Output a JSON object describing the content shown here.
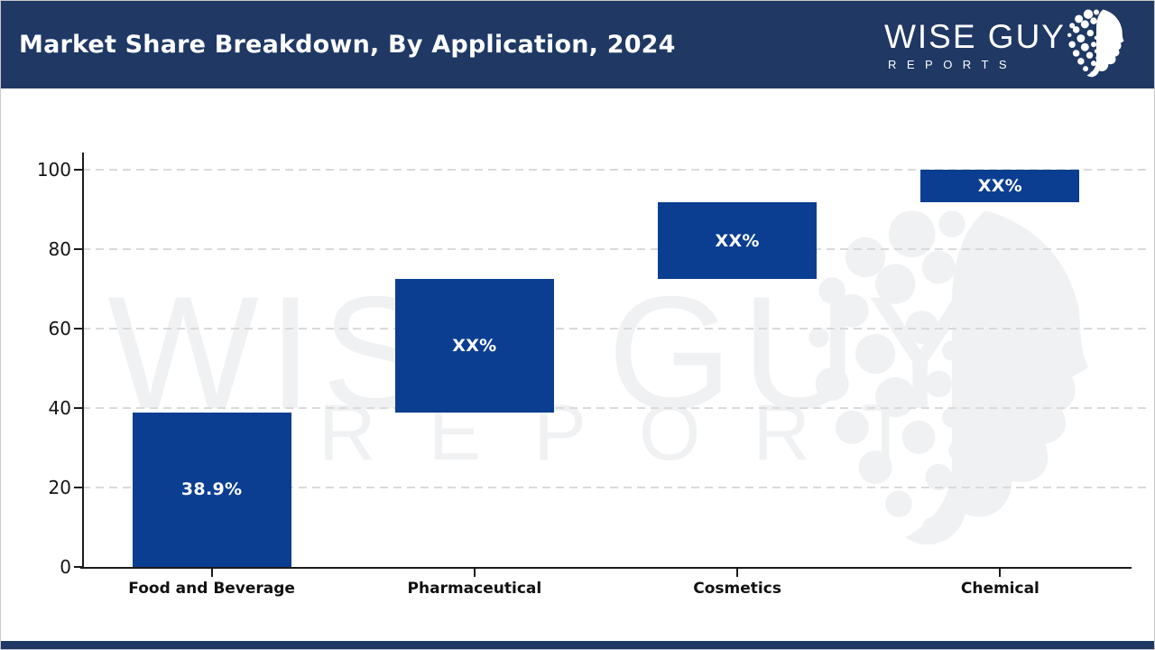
{
  "header": {
    "title": "Market Share Breakdown, By Application, 2024",
    "logo": {
      "line1": "WISE GUY",
      "line2": "REPORTS"
    }
  },
  "watermark": {
    "line1": "WISE GUY",
    "line2": "REPORTS"
  },
  "colors": {
    "header_bg": "#1f3864",
    "footer_bg": "#1f3864",
    "bar": "#0b3e91",
    "bar_label": "#ffffff",
    "grid": "#dadada",
    "axis": "#1a1a1a",
    "watermark": "#f0f1f3"
  },
  "chart_data": {
    "type": "bar",
    "subtype": "waterfall",
    "title": "Market Share Breakdown, By Application, 2024",
    "xlabel": "",
    "ylabel": "",
    "ylim": [
      0,
      100
    ],
    "yticks": [
      0,
      20,
      40,
      60,
      80,
      100
    ],
    "grid": "horizontal dashed",
    "legend": "none",
    "categories": [
      "Food and Beverage",
      "Pharmaceutical",
      "Cosmetics",
      "Chemical"
    ],
    "segments": [
      {
        "category": "Food and Beverage",
        "start": 0,
        "end": 38.9,
        "value": 38.9,
        "label": "38.9%"
      },
      {
        "category": "Pharmaceutical",
        "start": 38.9,
        "end": 72.4,
        "value": 33.5,
        "label": "XX%"
      },
      {
        "category": "Cosmetics",
        "start": 72.4,
        "end": 91.9,
        "value": 19.5,
        "label": "XX%"
      },
      {
        "category": "Chemical",
        "start": 91.9,
        "end": 100,
        "value": 8.1,
        "label": "XX%"
      }
    ]
  }
}
